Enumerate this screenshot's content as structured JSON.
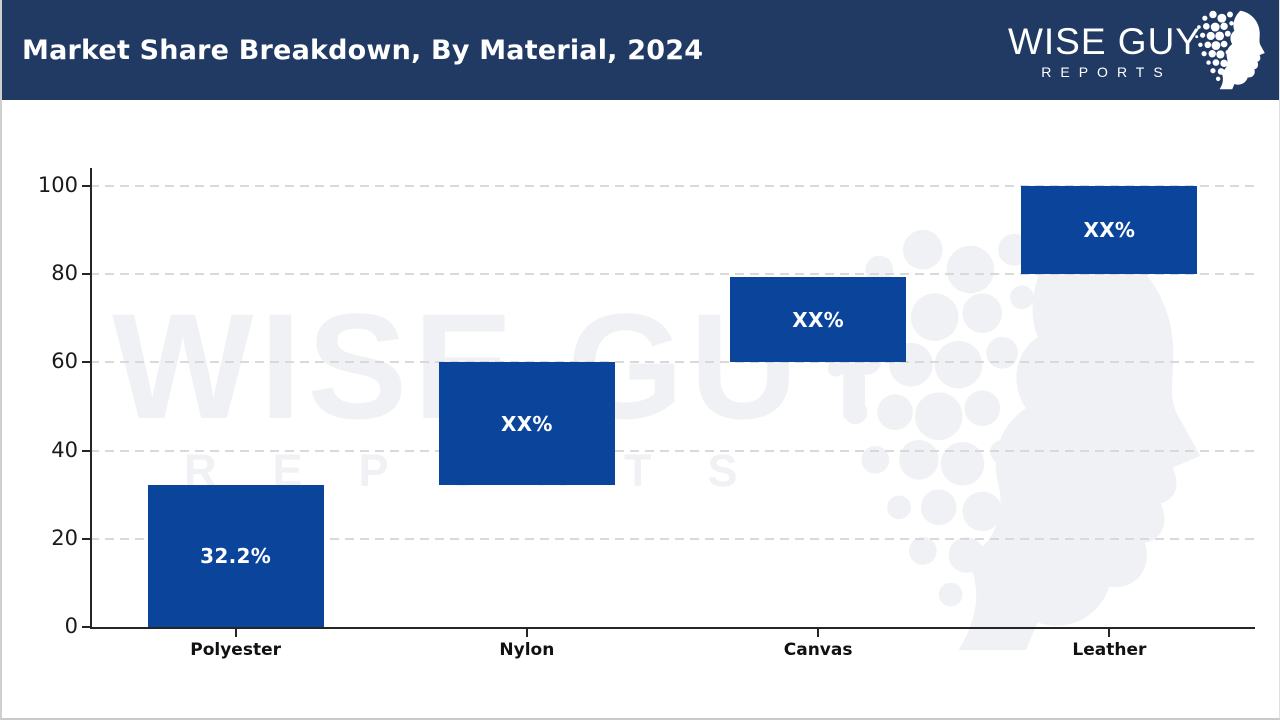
{
  "header": {
    "title": "Market Share Breakdown, By Material, 2024",
    "logo": {
      "line1": "WISE GUY",
      "line2": "REPORTS"
    }
  },
  "watermark": {
    "line1": "WISE GUY",
    "line2": "REPORTS"
  },
  "colors": {
    "header_bg": "#213a64",
    "bar": "#0b459b",
    "grid": "#d9d9d9",
    "axis": "#262626",
    "watermark": "#f0f1f4",
    "bar_label_text": "#ffffff",
    "title_text": "#ffffff"
  },
  "chart_data": {
    "type": "bar",
    "subtype": "waterfall",
    "title": "Market Share Breakdown, By Material, 2024",
    "xlabel": "",
    "ylabel": "",
    "categories": [
      "Polyester",
      "Nylon",
      "Canvas",
      "Leather"
    ],
    "segments": [
      {
        "category": "Polyester",
        "start": 0,
        "end": 32.2,
        "label": "32.2%"
      },
      {
        "category": "Nylon",
        "start": 32.2,
        "end": 60,
        "label": "XX%"
      },
      {
        "category": "Canvas",
        "start": 60,
        "end": 79.3,
        "label": "XX%"
      },
      {
        "category": "Leather",
        "start": 80,
        "end": 100,
        "label": "XX%"
      }
    ],
    "yticks": [
      0,
      20,
      40,
      60,
      80,
      100
    ],
    "ylim": [
      0,
      104
    ],
    "grid": "dashed-horizontal",
    "legend": "none"
  }
}
